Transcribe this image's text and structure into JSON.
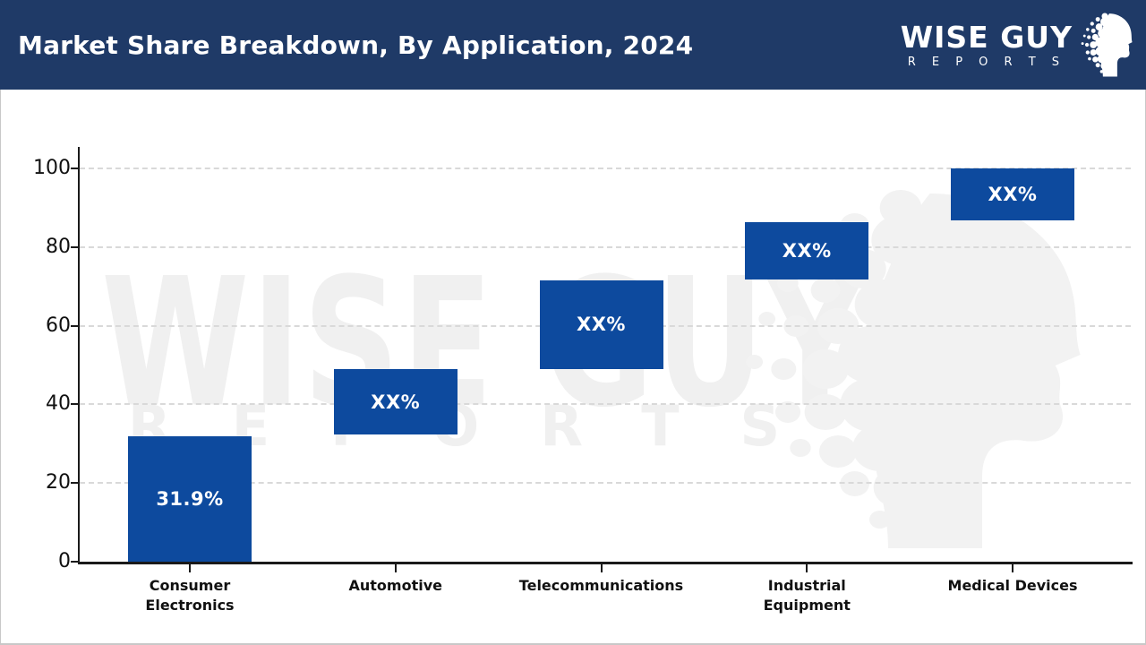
{
  "header": {
    "title": "Market Share Breakdown, By Application, 2024",
    "logo": {
      "line1": "WISE GUY",
      "line2": "R E P O R T S"
    }
  },
  "watermark": {
    "line1": "WISE GUY",
    "line2": "REPORTS"
  },
  "colors": {
    "header_bg": "#1f3a67",
    "bar_fill": "#0d4a9e",
    "bar_label_text": "#ffffff",
    "grid_line": "#d9d9d9",
    "axis_line": "#1a1a1a",
    "tick_text": "#111111",
    "watermark": "#f0f0f0",
    "page_border": "#c8c8c8"
  },
  "chart_data": {
    "type": "bar",
    "subtype": "waterfall",
    "title": "Market Share Breakdown, By Application, 2024",
    "xlabel": "",
    "ylabel": "",
    "ylim": [
      0,
      105
    ],
    "yticks": [
      0,
      20,
      40,
      60,
      80,
      100
    ],
    "grid": true,
    "legend": false,
    "categories": [
      "Consumer Electronics",
      "Automotive",
      "Telecommunications",
      "Industrial Equipment",
      "Medical Devices"
    ],
    "bars": [
      {
        "category": "Consumer Electronics",
        "display_label": "Consumer\nElectronics",
        "start": 0,
        "end": 31.9,
        "value_label": "31.9%"
      },
      {
        "category": "Automotive",
        "display_label": "Automotive",
        "start": 32.3,
        "end": 48.9,
        "value_label": "XX%"
      },
      {
        "category": "Telecommunications",
        "display_label": "Telecommunications",
        "start": 49.0,
        "end": 71.6,
        "value_label": "XX%"
      },
      {
        "category": "Industrial Equipment",
        "display_label": "Industrial\nEquipment",
        "start": 71.8,
        "end": 86.4,
        "value_label": "XX%"
      },
      {
        "category": "Medical Devices",
        "display_label": "Medical Devices",
        "start": 86.7,
        "end": 100,
        "value_label": "XX%"
      }
    ]
  }
}
